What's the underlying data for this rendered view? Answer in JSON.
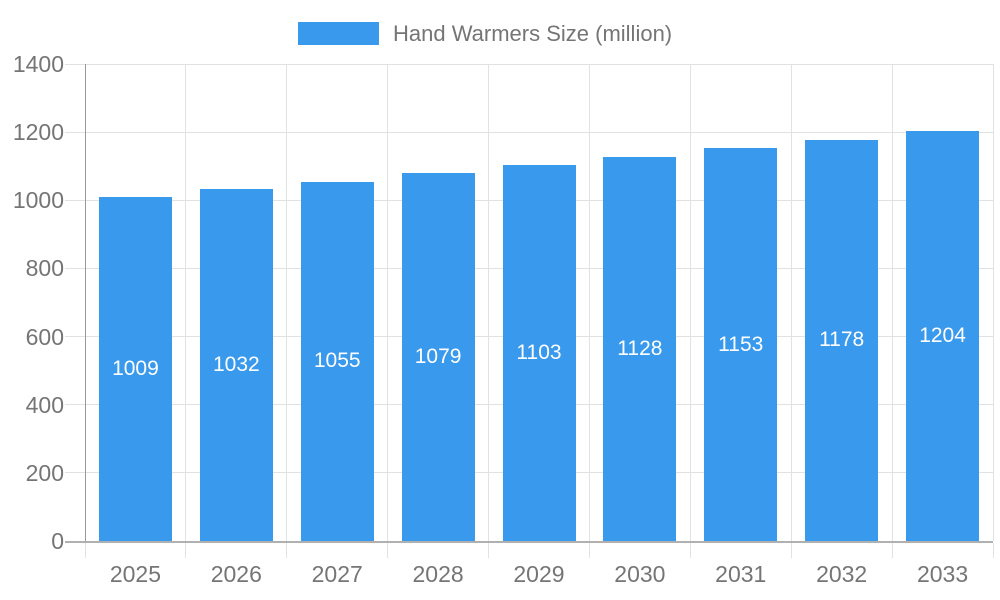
{
  "chart_data": {
    "type": "bar",
    "title": "",
    "legend": {
      "label": "Hand Warmers Size (million)",
      "position": "top"
    },
    "series_name": "Hand Warmers Size (million)",
    "categories": [
      "2025",
      "2026",
      "2027",
      "2028",
      "2029",
      "2030",
      "2031",
      "2032",
      "2033"
    ],
    "values": [
      1009,
      1032,
      1055,
      1079,
      1103,
      1128,
      1153,
      1178,
      1204
    ],
    "value_labels_shown": true,
    "ylim": [
      0,
      1400
    ],
    "yticks": [
      0,
      200,
      400,
      600,
      800,
      1000,
      1200,
      1400
    ],
    "xlabel": "",
    "ylabel": "",
    "grid": true,
    "colors": {
      "bar": "#3999EC",
      "value_label": "#FFFFFF",
      "axis_text": "#757575",
      "legend_text": "#757575",
      "gridline": "#E2E2E2",
      "y_axis_line": "#999999",
      "x_axis_line": "#B0B0B0"
    }
  }
}
